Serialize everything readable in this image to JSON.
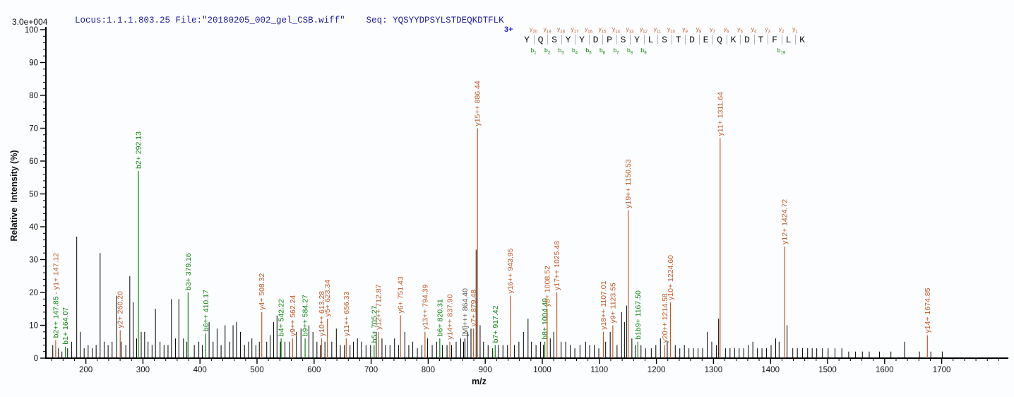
{
  "header": {
    "locus_file": "Locus:1.1.1.803.25 File:\"20180205_002_gel_CSB.wiff\"",
    "seq_label": "Seq:",
    "seq_value": "YQSYYDPSYLSTDEQKDTFLK"
  },
  "colors": {
    "y_ion": "#c05a28",
    "b_ion": "#0e850e",
    "precursor_label": "#5a5a5a",
    "peak_black": "#000000",
    "header_blue": "#1c1c9c",
    "charge_blue": "#2020cc",
    "axis": "#000000",
    "separator_gray": "#b3b3b3"
  },
  "fragment_map": {
    "charge": "3+",
    "residues": [
      "Y",
      "Q",
      "S",
      "Y",
      "Y",
      "D",
      "P",
      "S",
      "Y",
      "L",
      "S",
      "T",
      "D",
      "E",
      "Q",
      "K",
      "D",
      "T",
      "F",
      "L",
      "K"
    ],
    "y_ion_boundaries": [
      20,
      19,
      18,
      17,
      16,
      15,
      14,
      13,
      12,
      11,
      10,
      9,
      8,
      7,
      6,
      5,
      4,
      3,
      2,
      1
    ],
    "b_ion_boundaries": [
      1,
      2,
      3,
      4,
      5,
      6,
      7,
      8,
      9,
      19
    ]
  },
  "chart_data": {
    "type": "bar",
    "subtype": "MS/MS centroid stick spectrum",
    "title": "Locus:1.1.1.803.25 File:\"20180205_002_gel_CSB.wiff\" Seq: YQSYYDPSYLSTDEQKDTFLK",
    "xlabel": "m/z",
    "ylabel": "Relative  Intensity (%)",
    "intensity_full_scale": "3.0e+004",
    "xlim": [
      130,
      1810
    ],
    "ylim": [
      0,
      100
    ],
    "x_ticks": [
      200,
      300,
      400,
      500,
      600,
      700,
      800,
      900,
      1000,
      1100,
      1200,
      1300,
      1400,
      1500,
      1600,
      1700
    ],
    "x_minor_start": 140,
    "x_minor_end": 1800,
    "x_minor_step": 20,
    "y_ticks": [
      0,
      10,
      20,
      30,
      40,
      50,
      60,
      70,
      80,
      90,
      100
    ],
    "y_minor_step": 2,
    "grid": "off",
    "legend": "none",
    "labeled_peaks": [
      {
        "mz": 147.12,
        "intensity": 5.5,
        "label": "b2++ 147.85 ",
        "ion_type": "b",
        "label2": "- y1+ 147.12",
        "ion_type2": "y",
        "line": "y"
      },
      {
        "mz": 164.07,
        "intensity": 3.5,
        "label": "b1+ 164.07",
        "ion_type": "b",
        "line": "b"
      },
      {
        "mz": 260.2,
        "intensity": 8.5,
        "label": "y2+ 260.20",
        "ion_type": "y",
        "line": "y"
      },
      {
        "mz": 292.13,
        "intensity": 57,
        "label": "b2+ 292.13",
        "ion_type": "b",
        "line": "b"
      },
      {
        "mz": 379.16,
        "intensity": 20,
        "label": "b3+ 379.16",
        "ion_type": "b",
        "line": "b"
      },
      {
        "mz": 410.17,
        "intensity": 7.5,
        "label": "b6++ 410.17",
        "ion_type": "b",
        "line": "b"
      },
      {
        "mz": 508.32,
        "intensity": 14,
        "label": "y4+ 508.32",
        "ion_type": "y",
        "line": "y"
      },
      {
        "mz": 542.22,
        "intensity": 6,
        "label": "b4+ 542.22",
        "ion_type": "b",
        "line": "b"
      },
      {
        "mz": 562.24,
        "intensity": 6,
        "label": "y9++ 562.24",
        "ion_type": "y",
        "line": "y"
      },
      {
        "mz": 584.27,
        "intensity": 6,
        "label": "b9++ 584.27",
        "ion_type": "b",
        "line": "b"
      },
      {
        "mz": 613.28,
        "intensity": 6,
        "label": "y10++ 613.28",
        "ion_type": "y",
        "line": "y"
      },
      {
        "mz": 623.34,
        "intensity": 12,
        "label": "y5+ 623.34",
        "ion_type": "y",
        "line": "y"
      },
      {
        "mz": 656.33,
        "intensity": 6,
        "label": "y11++ 656.33",
        "ion_type": "y",
        "line": "y"
      },
      {
        "mz": 705.27,
        "intensity": 4,
        "label": "b5+ 705.27",
        "ion_type": "b",
        "line": "b"
      },
      {
        "mz": 712.87,
        "intensity": 8,
        "label": "y12++ 712.87",
        "ion_type": "y",
        "line": "y"
      },
      {
        "mz": 751.43,
        "intensity": 13,
        "label": "y6+ 751.43",
        "ion_type": "y",
        "line": "y"
      },
      {
        "mz": 794.39,
        "intensity": 8,
        "label": "y13++ 794.39",
        "ion_type": "y",
        "line": "y"
      },
      {
        "mz": 820.31,
        "intensity": 6,
        "label": "b6+ 820.31",
        "ion_type": "b",
        "line": "b"
      },
      {
        "mz": 837.9,
        "intensity": 5,
        "label": "y14++ 837.90",
        "ion_type": "y",
        "line": "y"
      },
      {
        "mz": 864.4,
        "intensity": 6,
        "label": "[M]+++ 864.40",
        "ion_type": "M",
        "line": "k"
      },
      {
        "mz": 879.48,
        "intensity": 9,
        "label": "y7+ 879.48",
        "ion_type": "y",
        "line": "y"
      },
      {
        "mz": 886.44,
        "intensity": 70,
        "label": "y15++ 886.44",
        "ion_type": "y",
        "line": "y"
      },
      {
        "mz": 917.42,
        "intensity": 4,
        "label": "b7+ 917.42",
        "ion_type": "b",
        "line": "b"
      },
      {
        "mz": 943.95,
        "intensity": 19,
        "label": "y16++ 943.95",
        "ion_type": "y",
        "line": "y"
      },
      {
        "mz": 1004.4,
        "intensity": 5,
        "label": "b8+ 1004.40",
        "ion_type": "b",
        "line": "b"
      },
      {
        "mz": 1008.52,
        "intensity": 15,
        "label": "y8+ 1008.52",
        "ion_type": "y",
        "line": "y"
      },
      {
        "mz": 1025.48,
        "intensity": 20,
        "label": "y17++ 1025.48",
        "ion_type": "y",
        "line": "y"
      },
      {
        "mz": 1107.01,
        "intensity": 8,
        "label": "y18++ 1107.01",
        "ion_type": "y",
        "line": "y"
      },
      {
        "mz": 1123.55,
        "intensity": 10,
        "label": "y9+ 1123.55",
        "ion_type": "y",
        "line": "y"
      },
      {
        "mz": 1150.53,
        "intensity": 45,
        "label": "y19++ 1150.53",
        "ion_type": "y",
        "line": "y"
      },
      {
        "mz": 1167.5,
        "intensity": 5,
        "label": "b1b9+ 1167.50",
        "ion_type": "b",
        "line": "b"
      },
      {
        "mz": 1214.58,
        "intensity": 4,
        "label": "y20++ 1214.58",
        "ion_type": "y",
        "line": "y"
      },
      {
        "mz": 1224.6,
        "intensity": 17,
        "label": "y10+ 1224.60",
        "ion_type": "y",
        "line": "y"
      },
      {
        "mz": 1311.64,
        "intensity": 67,
        "label": "y11+ 1311.64",
        "ion_type": "y",
        "line": "y"
      },
      {
        "mz": 1424.72,
        "intensity": 34,
        "label": "y12+ 1424.72",
        "ion_type": "y",
        "line": "y"
      },
      {
        "mz": 1674.85,
        "intensity": 7,
        "label": "y14+ 1674.85",
        "ion_type": "y",
        "line": "y"
      }
    ],
    "unlabeled_peaks": [
      [
        142,
        4
      ],
      [
        152,
        3
      ],
      [
        158,
        2
      ],
      [
        168,
        3
      ],
      [
        175,
        5
      ],
      [
        184,
        37
      ],
      [
        190,
        8
      ],
      [
        197,
        3
      ],
      [
        204,
        4
      ],
      [
        211,
        3
      ],
      [
        218,
        4
      ],
      [
        225,
        32
      ],
      [
        232,
        5
      ],
      [
        239,
        4
      ],
      [
        246,
        5
      ],
      [
        254,
        19
      ],
      [
        262,
        5
      ],
      [
        270,
        4
      ],
      [
        277,
        25
      ],
      [
        283,
        17
      ],
      [
        289,
        6
      ],
      [
        297,
        8
      ],
      [
        303,
        8
      ],
      [
        309,
        5
      ],
      [
        316,
        4
      ],
      [
        322,
        15
      ],
      [
        330,
        5
      ],
      [
        337,
        4
      ],
      [
        344,
        4
      ],
      [
        350,
        18
      ],
      [
        357,
        6
      ],
      [
        363,
        18
      ],
      [
        371,
        6
      ],
      [
        377,
        5
      ],
      [
        390,
        4
      ],
      [
        398,
        5
      ],
      [
        404,
        4
      ],
      [
        416,
        11
      ],
      [
        423,
        5
      ],
      [
        430,
        9
      ],
      [
        437,
        4
      ],
      [
        444,
        10
      ],
      [
        452,
        5
      ],
      [
        458,
        10
      ],
      [
        464,
        11
      ],
      [
        471,
        8
      ],
      [
        478,
        4
      ],
      [
        485,
        5
      ],
      [
        491,
        6
      ],
      [
        498,
        4
      ],
      [
        504,
        5
      ],
      [
        517,
        5
      ],
      [
        523,
        7
      ],
      [
        529,
        11
      ],
      [
        535,
        13
      ],
      [
        541,
        5
      ],
      [
        549,
        5
      ],
      [
        557,
        5
      ],
      [
        569,
        8
      ],
      [
        577,
        9
      ],
      [
        591,
        10
      ],
      [
        598,
        8
      ],
      [
        605,
        5
      ],
      [
        611,
        4
      ],
      [
        619,
        5
      ],
      [
        631,
        5
      ],
      [
        639,
        9
      ],
      [
        646,
        4
      ],
      [
        653,
        4
      ],
      [
        663,
        4
      ],
      [
        669,
        5
      ],
      [
        676,
        6
      ],
      [
        683,
        5
      ],
      [
        691,
        4
      ],
      [
        699,
        4
      ],
      [
        709,
        8
      ],
      [
        719,
        6
      ],
      [
        725,
        4
      ],
      [
        733,
        4
      ],
      [
        741,
        6
      ],
      [
        748,
        4
      ],
      [
        759,
        8
      ],
      [
        766,
        4
      ],
      [
        773,
        5
      ],
      [
        781,
        3
      ],
      [
        789,
        4
      ],
      [
        799,
        6
      ],
      [
        807,
        4
      ],
      [
        815,
        5
      ],
      [
        825,
        4
      ],
      [
        833,
        4
      ],
      [
        841,
        4
      ],
      [
        849,
        5
      ],
      [
        857,
        6
      ],
      [
        862,
        5
      ],
      [
        869,
        8
      ],
      [
        875,
        9
      ],
      [
        884,
        33
      ],
      [
        891,
        10
      ],
      [
        897,
        5
      ],
      [
        905,
        4
      ],
      [
        913,
        3
      ],
      [
        923,
        4
      ],
      [
        931,
        4
      ],
      [
        939,
        4
      ],
      [
        951,
        4
      ],
      [
        959,
        5
      ],
      [
        967,
        8
      ],
      [
        975,
        12
      ],
      [
        981,
        5
      ],
      [
        989,
        4
      ],
      [
        997,
        5
      ],
      [
        1002,
        4
      ],
      [
        1014,
        6
      ],
      [
        1020,
        8
      ],
      [
        1033,
        5
      ],
      [
        1041,
        5
      ],
      [
        1049,
        4
      ],
      [
        1057,
        3
      ],
      [
        1066,
        4
      ],
      [
        1076,
        5
      ],
      [
        1083,
        4
      ],
      [
        1091,
        4
      ],
      [
        1099,
        3
      ],
      [
        1111,
        5
      ],
      [
        1119,
        8
      ],
      [
        1131,
        4
      ],
      [
        1139,
        14
      ],
      [
        1144,
        11
      ],
      [
        1148,
        16
      ],
      [
        1157,
        6
      ],
      [
        1163,
        4
      ],
      [
        1173,
        4
      ],
      [
        1181,
        3
      ],
      [
        1191,
        3
      ],
      [
        1199,
        4
      ],
      [
        1207,
        6
      ],
      [
        1219,
        5
      ],
      [
        1233,
        4
      ],
      [
        1241,
        3
      ],
      [
        1249,
        4
      ],
      [
        1257,
        3
      ],
      [
        1265,
        3
      ],
      [
        1273,
        3
      ],
      [
        1281,
        3
      ],
      [
        1289,
        8
      ],
      [
        1297,
        5
      ],
      [
        1305,
        4
      ],
      [
        1309,
        12
      ],
      [
        1321,
        3
      ],
      [
        1329,
        3
      ],
      [
        1337,
        3
      ],
      [
        1345,
        3
      ],
      [
        1353,
        3
      ],
      [
        1361,
        4
      ],
      [
        1369,
        5
      ],
      [
        1377,
        3
      ],
      [
        1385,
        3
      ],
      [
        1393,
        3
      ],
      [
        1401,
        4
      ],
      [
        1409,
        6
      ],
      [
        1415,
        5
      ],
      [
        1429,
        10
      ],
      [
        1439,
        3
      ],
      [
        1447,
        3
      ],
      [
        1456,
        3
      ],
      [
        1465,
        3
      ],
      [
        1473,
        3
      ],
      [
        1481,
        3
      ],
      [
        1491,
        3
      ],
      [
        1501,
        3
      ],
      [
        1513,
        3
      ],
      [
        1525,
        3
      ],
      [
        1537,
        2
      ],
      [
        1549,
        2
      ],
      [
        1561,
        2
      ],
      [
        1573,
        2
      ],
      [
        1591,
        2
      ],
      [
        1611,
        2
      ],
      [
        1635,
        5
      ],
      [
        1661,
        2
      ],
      [
        1681,
        2
      ],
      [
        1701,
        2
      ]
    ]
  }
}
